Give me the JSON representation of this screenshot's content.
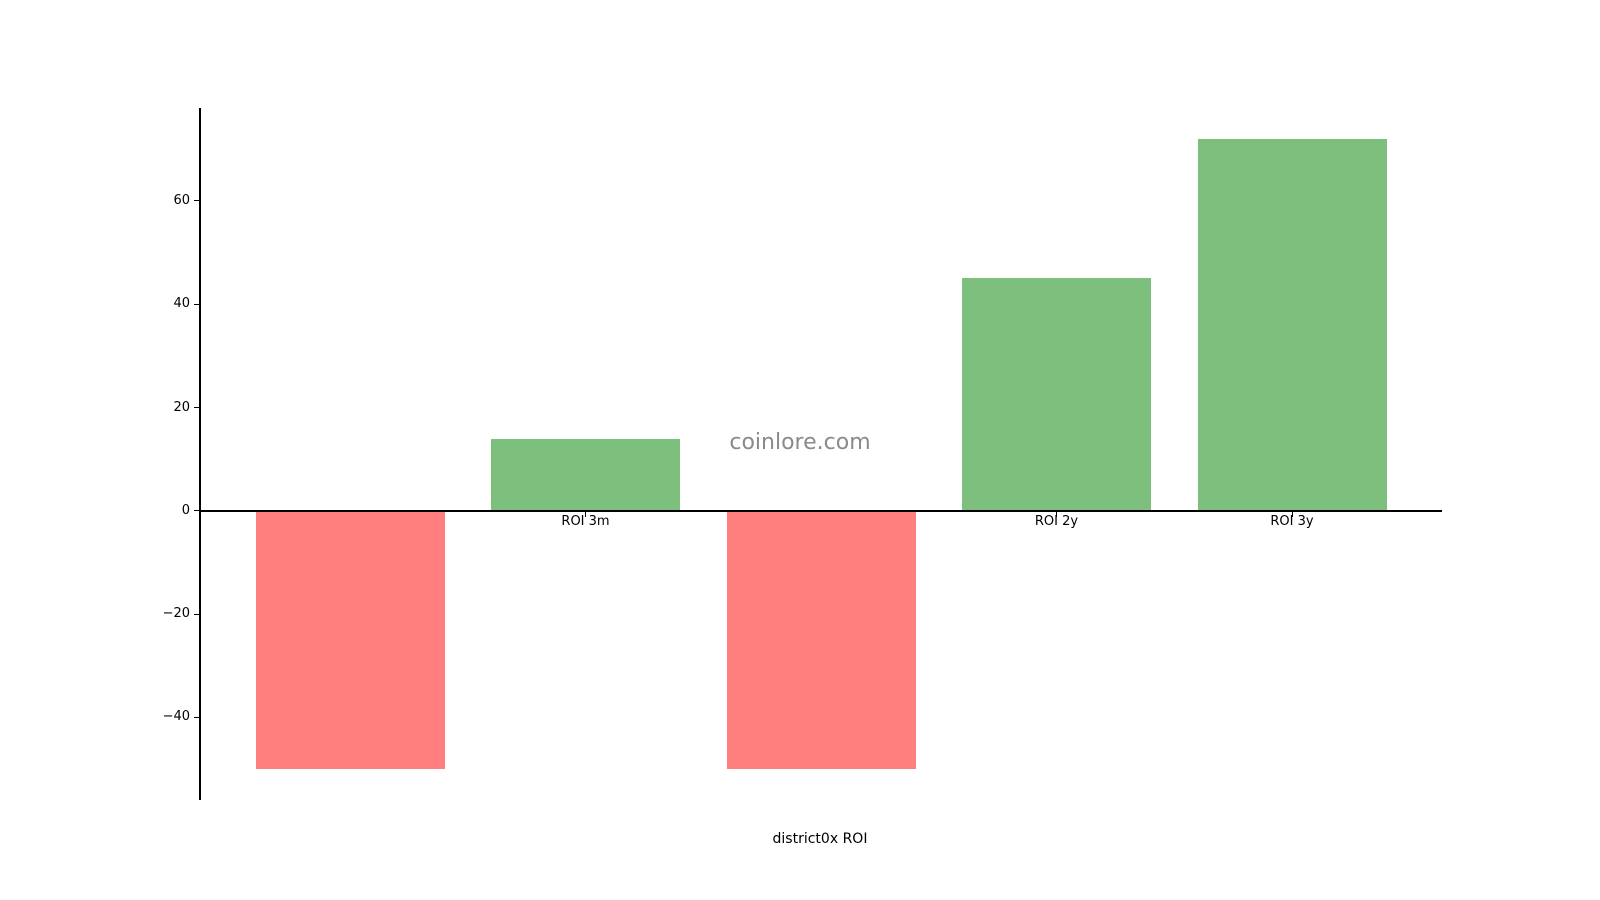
{
  "watermark": "coinlore.com",
  "chart_data": {
    "type": "bar",
    "title": "district0x ROI",
    "watermark": "coinlore.com",
    "categories": [
      "",
      "ROI 3m",
      "",
      "ROI 2y",
      "ROI 3y"
    ],
    "values": [
      -50,
      14,
      -50,
      45,
      72
    ],
    "bar_colors": [
      "#ff7f7f",
      "#7dc07d",
      "#ff7f7f",
      "#7dc07d",
      "#7dc07d"
    ],
    "negative_color": "#ff7f7f",
    "positive_color": "#7dc07d",
    "yticks": [
      60,
      40,
      20,
      0,
      -20,
      -40
    ],
    "ytick_labels": [
      "60",
      "40",
      "20",
      "0",
      "−20",
      "−40"
    ],
    "ylim": [
      -56,
      78
    ],
    "xlabel": "",
    "ylabel": "",
    "grid": false,
    "legend": false,
    "axis_color": "#000000",
    "text_color": "#000000",
    "watermark_color": "#8a8a8a",
    "background": "#ffffff"
  }
}
